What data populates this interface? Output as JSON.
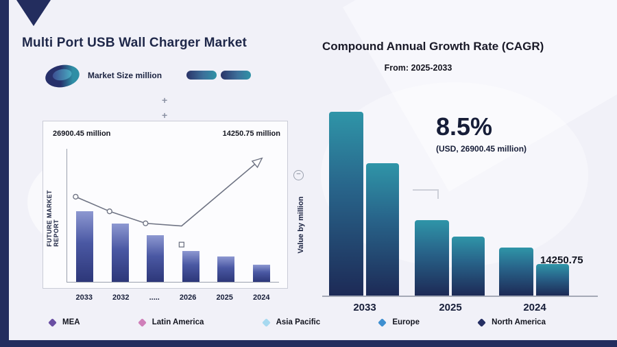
{
  "icons": {
    "plus": "+",
    "minus": "−"
  },
  "bottom_legend": {
    "items": [
      {
        "label": "MEA",
        "color": "#6a4fa3"
      },
      {
        "label": "Latin America",
        "color": "#cf7fb9"
      },
      {
        "label": "Asia Pacific",
        "color": "#a7d9f0"
      },
      {
        "label": "Europe",
        "color": "#3e8fd0"
      },
      {
        "label": "North America",
        "color": "#252f63"
      }
    ]
  },
  "colors": {
    "frame_navy": "#232d5e",
    "bar_teal_top": "#2f95a8",
    "bar_navy_bottom": "#1d2a56",
    "bar_indigo_top": "#8d98d1",
    "bar_indigo_bottom": "#2d3779"
  },
  "chart_data": [
    {
      "type": "bar",
      "title": "Multi Port USB Wall Charger Market",
      "legend": "Market Size million",
      "ylabel": "FUTURE MARKET REPORT",
      "categories": [
        "2033",
        "2032",
        ".....",
        "2026",
        "2025",
        "2024"
      ],
      "series": [
        {
          "name": "Market Size (relative, unlabeled axis)",
          "values": [
            53,
            44,
            35,
            23,
            19,
            13
          ]
        }
      ],
      "line_overlay": {
        "points_pct": [
          [
            4,
            36
          ],
          [
            20,
            47
          ],
          [
            37,
            56
          ],
          [
            54,
            58
          ],
          [
            92,
            7
          ]
        ],
        "marker_indices": [
          0,
          1,
          2
        ],
        "square_marker_pct": [
          54,
          72
        ]
      },
      "annotations": {
        "left": "26900.45 million",
        "right": "14250.75 million"
      },
      "ylim": [
        0,
        100
      ],
      "grid": false,
      "legend_position": "top-left"
    },
    {
      "type": "bar",
      "title": "Compound Annual Growth Rate (CAGR)",
      "subtitle": "From: 2025-2033",
      "ylabel": "Value by million",
      "categories": [
        "2033",
        "2025",
        "2024"
      ],
      "series": [
        {
          "name": "series-1 (relative, unlabeled axis)",
          "values": [
            100,
            41,
            26
          ]
        },
        {
          "name": "series-2 (relative, unlabeled axis)",
          "values": [
            72,
            32,
            17
          ]
        }
      ],
      "annotations": {
        "cagr": "8.5%",
        "cagr_note": "(USD, 26900.45 million)",
        "value_label": "14250.75"
      },
      "ylim": [
        0,
        100
      ],
      "grid": false
    }
  ]
}
